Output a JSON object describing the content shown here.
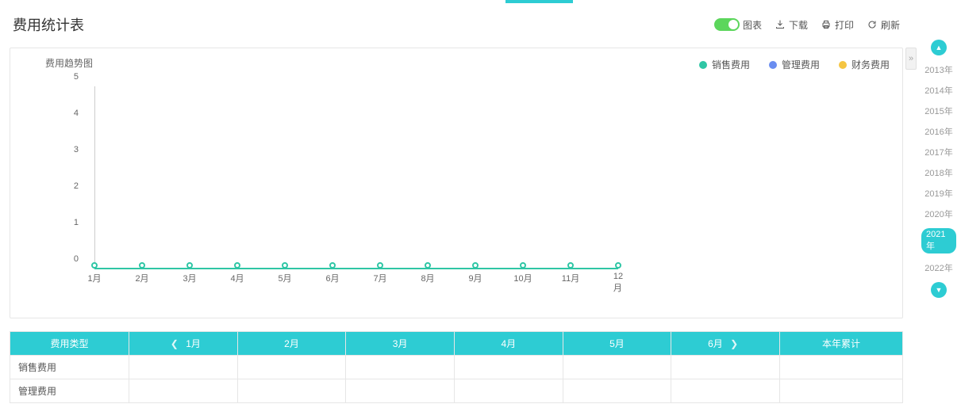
{
  "page": {
    "title": "费用统计表"
  },
  "toolbar": {
    "toggle_label": "图表",
    "download_label": "下载",
    "print_label": "打印",
    "refresh_label": "刷新",
    "toggle_on": true,
    "toggle_color": "#5cd65c"
  },
  "chart": {
    "type": "line",
    "title": "费用趋势图",
    "background_color": "#ffffff",
    "axis_color": "#cccccc",
    "tick_font_color": "#666666",
    "tick_fontsize": 11,
    "x_categories": [
      "1月",
      "2月",
      "3月",
      "4月",
      "5月",
      "6月",
      "7月",
      "8月",
      "9月",
      "10月",
      "11月",
      "12月"
    ],
    "ylim": [
      0,
      5
    ],
    "ytick_step": 1,
    "y_ticks": [
      "0",
      "1",
      "2",
      "3",
      "4",
      "5"
    ],
    "series": [
      {
        "name": "销售费用",
        "color": "#2fc6a5",
        "values": [
          0,
          0,
          0,
          0,
          0,
          0,
          0,
          0,
          0,
          0,
          0,
          0
        ],
        "show_line": true,
        "show_points": true
      },
      {
        "name": "管理费用",
        "color": "#6a8df0",
        "values": [
          0,
          0,
          0,
          0,
          0,
          0,
          0,
          0,
          0,
          0,
          0,
          0
        ],
        "show_line": false,
        "show_points": false
      },
      {
        "name": "财务费用",
        "color": "#f5c542",
        "values": [
          0,
          0,
          0,
          0,
          0,
          0,
          0,
          0,
          0,
          0,
          0,
          0
        ],
        "show_line": false,
        "show_points": false
      }
    ],
    "line_width": 2,
    "point_radius": 4
  },
  "table": {
    "type_header": "费用类型",
    "visible_months": [
      "1月",
      "2月",
      "3月",
      "4月",
      "5月",
      "6月"
    ],
    "year_total_header": "本年累计",
    "rows": [
      {
        "label": "销售费用",
        "cells": [
          "",
          "",
          "",
          "",
          "",
          ""
        ],
        "total": ""
      },
      {
        "label": "管理费用",
        "cells": [
          "",
          "",
          "",
          "",
          "",
          ""
        ],
        "total": ""
      }
    ],
    "header_bg": "#2dccd3",
    "border_color": "#e6e6e6"
  },
  "year_sidebar": {
    "years": [
      "2013年",
      "2014年",
      "2015年",
      "2016年",
      "2017年",
      "2018年",
      "2019年",
      "2020年",
      "2021年",
      "2022年"
    ],
    "active_index": 8,
    "nav_color": "#2dccd3"
  }
}
